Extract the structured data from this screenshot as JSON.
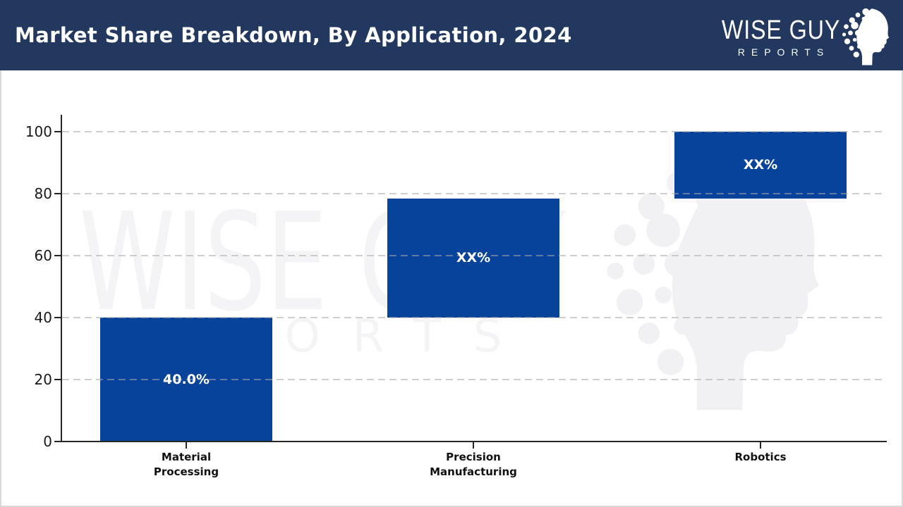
{
  "header": {
    "title": "Market Share Breakdown, By Application, 2024",
    "background": "#22385f",
    "logo": {
      "line1": "WISE GUY",
      "line2": "REPORTS"
    }
  },
  "watermark": {
    "line1": "WISE GUY",
    "line2": "REPORTS"
  },
  "chart_data": {
    "type": "bar",
    "subtype": "waterfall",
    "title": "Market Share Breakdown, By Application, 2024",
    "categories": [
      "Material Processing",
      "Precision Manufacturing",
      "Robotics"
    ],
    "category_label_lines": [
      [
        "Material",
        "Processing"
      ],
      [
        "Precision",
        "Manufacturing"
      ],
      [
        "Robotics"
      ]
    ],
    "segments": [
      {
        "category": "Material Processing",
        "start": 0,
        "end": 40,
        "label": "40.0%"
      },
      {
        "category": "Precision Manufacturing",
        "start": 40,
        "end": 78.5,
        "label": "XX%"
      },
      {
        "category": "Robotics",
        "start": 78.5,
        "end": 100,
        "label": "XX%"
      }
    ],
    "ylim": [
      0,
      100
    ],
    "yticks": [
      0,
      20,
      40,
      60,
      80,
      100
    ],
    "grid": {
      "axis": "y",
      "style": "dashed",
      "above_bars": true
    },
    "xlabel": "",
    "ylabel": "",
    "bar_color": "#08439b",
    "bar_label_color": "#ffffff",
    "axis_color": "#262626"
  }
}
